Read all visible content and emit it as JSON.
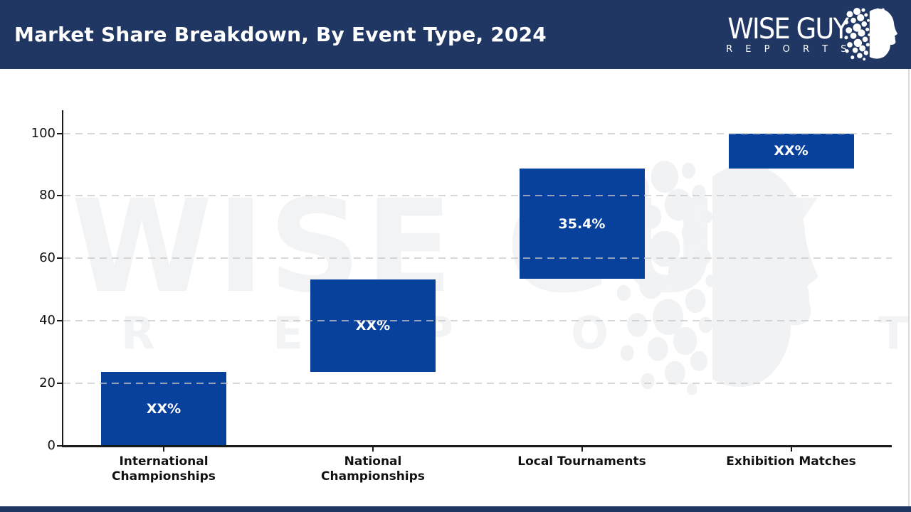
{
  "header": {
    "title": "Market Share Breakdown, By Event Type, 2024",
    "logo": {
      "line1": "WISE GUY",
      "line2": "R E P O R T S"
    }
  },
  "watermark": {
    "line1": "WISE GUY",
    "line2": "R E P O R T S"
  },
  "chart_data": {
    "type": "bar",
    "subtype": "floating-segment-waterfall",
    "title": "Market Share Breakdown, By Event Type, 2024",
    "xlabel": "",
    "ylabel": "",
    "ylim": [
      0,
      100
    ],
    "yticks": [
      0,
      20,
      40,
      60,
      80,
      100
    ],
    "grid": "horizontal-dashed",
    "legend": "none",
    "bar_color": "#08419c",
    "label_color": "#ffffff",
    "categories": [
      "International\nChampionships",
      "National\nChampionships",
      "Local Tournaments",
      "Exhibition Matches"
    ],
    "segments": [
      {
        "category": "International Championships",
        "start": 0,
        "end": 23.6,
        "label": "XX%"
      },
      {
        "category": "National Championships",
        "start": 23.6,
        "end": 53.3,
        "label": "XX%"
      },
      {
        "category": "Local Tournaments",
        "start": 53.3,
        "end": 88.7,
        "label": "35.4%"
      },
      {
        "category": "Exhibition Matches",
        "start": 88.7,
        "end": 100,
        "label": "XX%"
      }
    ]
  },
  "colors": {
    "header_bg": "#213763",
    "footer_bg": "#213763",
    "bar": "#08419c",
    "grid": "#c8c8c8",
    "axis": "#1a1a1a",
    "watermark": "#f2f3f5",
    "title_text": "#ffffff"
  }
}
